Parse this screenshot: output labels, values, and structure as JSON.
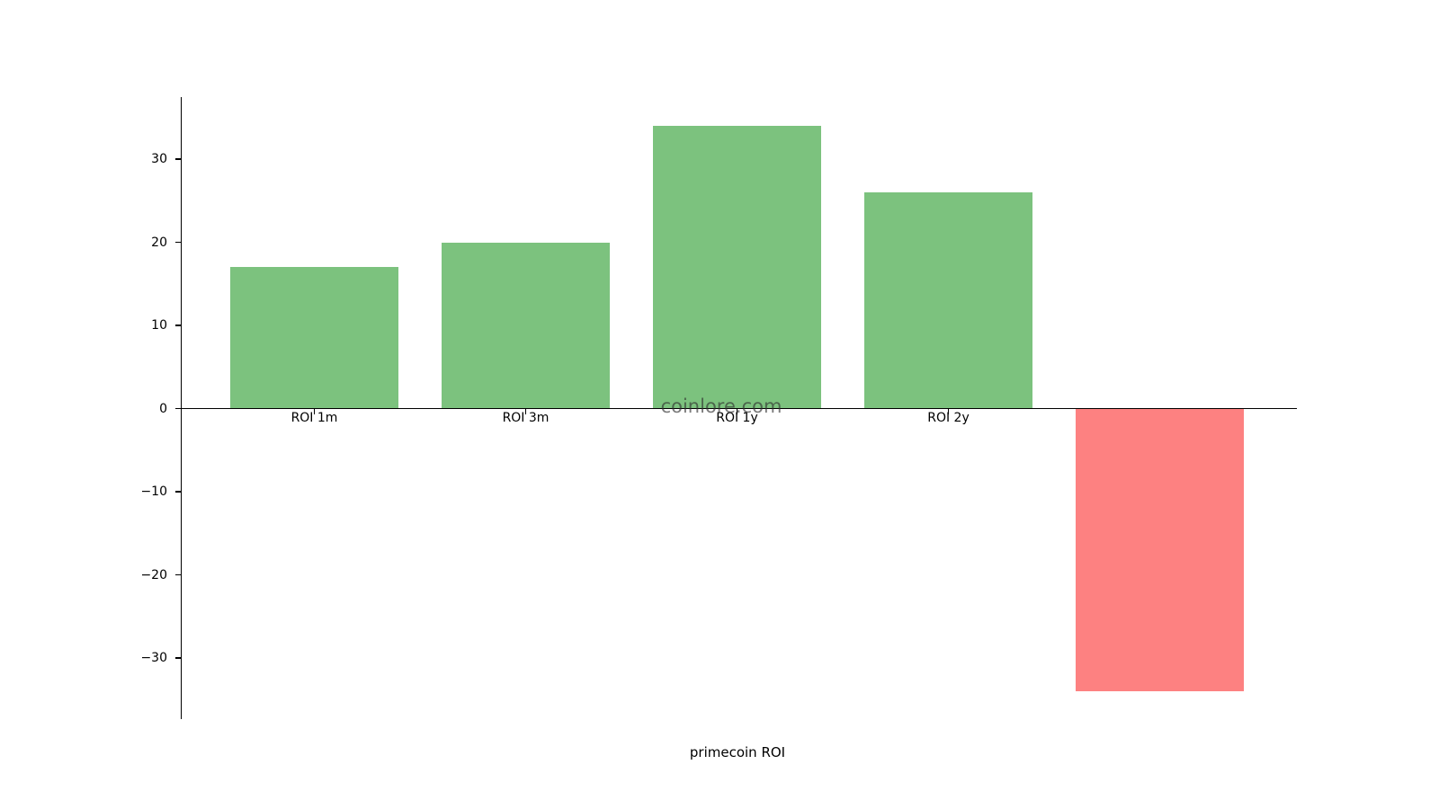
{
  "page": {
    "background": "#ffffff"
  },
  "chart_data": {
    "type": "bar",
    "title": "",
    "xlabel": "primecoin ROI",
    "ylabel": "",
    "categories": [
      "ROI 1m",
      "ROI 3m",
      "ROI 1y",
      "ROI 2y",
      ""
    ],
    "values": [
      17,
      20,
      34,
      26,
      -34
    ],
    "bar_colors": [
      "#7cc27e",
      "#7cc27e",
      "#7cc27e",
      "#7cc27e",
      "#fd8181"
    ],
    "positive_color": "#7cc27e",
    "negative_color": "#fd8181",
    "yticks": [
      30,
      20,
      10,
      0,
      -10,
      -20,
      -30
    ],
    "ylim": [
      -37.4,
      37.4
    ],
    "grid": false,
    "legend_position": "none",
    "axis_color": "#000000",
    "tick_label_color": "#000000",
    "watermark": "coinlore.com",
    "watermark_color": "rgba(45,45,45,0.62)"
  }
}
